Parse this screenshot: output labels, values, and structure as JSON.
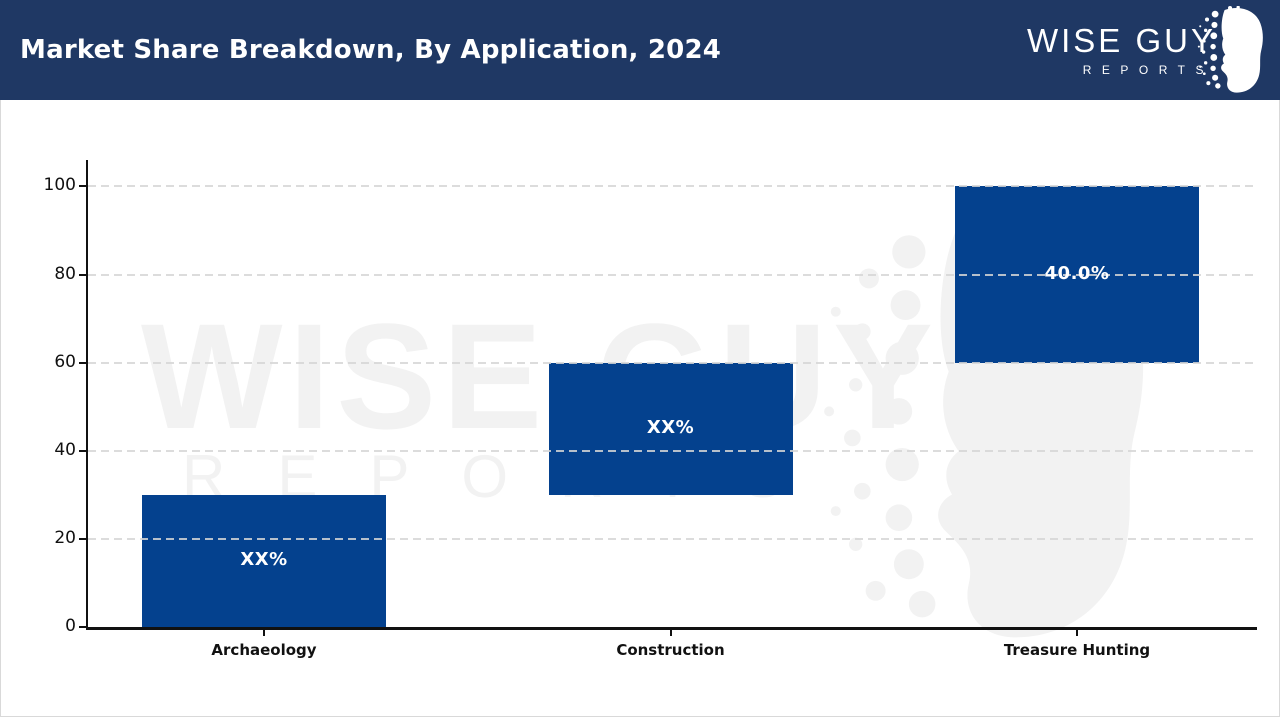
{
  "header": {
    "title": "Market Share Breakdown, By Application, 2024",
    "logo": {
      "line1": "WISE GUY",
      "line2": "REPORTS"
    }
  },
  "watermark": {
    "line1": "WISE GUY",
    "line2": "REPORTS"
  },
  "chart_data": {
    "type": "bar",
    "subtype": "floating-waterfall",
    "title": "Market Share Breakdown, By Application, 2024",
    "categories": [
      "Archaeology",
      "Construction",
      "Treasure Hunting"
    ],
    "bars": [
      {
        "category": "Archaeology",
        "start": 0,
        "end": 30,
        "label": "XX%"
      },
      {
        "category": "Construction",
        "start": 30,
        "end": 60,
        "label": "XX%"
      },
      {
        "category": "Treasure Hunting",
        "start": 60,
        "end": 100,
        "label": "40.0%"
      }
    ],
    "yticks": [
      0,
      20,
      40,
      60,
      80,
      100
    ],
    "ylim": [
      0,
      106
    ],
    "grid": "dashed-horizontal",
    "legend": "none",
    "xlabel": "",
    "ylabel": ""
  },
  "colors": {
    "header_bg": "#1f3864",
    "bar": "#04418e",
    "bar_label": "#ffffff",
    "grid": "#d6d6d6",
    "axis": "#111111",
    "watermark": "#f2f2f2"
  }
}
